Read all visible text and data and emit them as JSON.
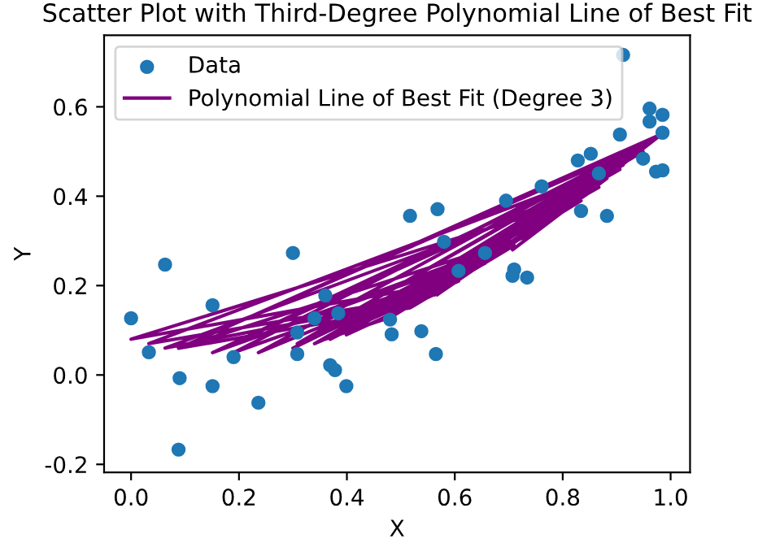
{
  "chart_data": {
    "type": "scatter",
    "title": "Scatter Plot with Third-Degree Polynomial Line of Best Fit",
    "xlabel": "X",
    "ylabel": "Y",
    "x": [
      0.48,
      0.961,
      0.088,
      0.734,
      0.151,
      0.906,
      0.34,
      0.607,
      0.0,
      0.828,
      0.308,
      0.985,
      0.236,
      0.695,
      0.369,
      0.867,
      0.063,
      0.538,
      0.973,
      0.19,
      0.656,
      0.384,
      0.912,
      0.033,
      0.565,
      0.852,
      0.3,
      0.761,
      0.378,
      0.985,
      0.09,
      0.517,
      0.71,
      0.151,
      0.949,
      0.36,
      0.483,
      0.834,
      0.308,
      0.961,
      0.399,
      0.58,
      0.882,
      0.707,
      0.985,
      0.568
    ],
    "series": [
      {
        "name": "Data",
        "color": "#1f77b4",
        "marker": "circle",
        "values": [
          0.124,
          0.596,
          -0.167,
          0.218,
          0.156,
          0.538,
          0.127,
          0.233,
          0.127,
          0.48,
          0.047,
          0.542,
          -0.062,
          0.39,
          0.022,
          0.451,
          0.247,
          0.098,
          0.455,
          0.04,
          0.273,
          0.138,
          0.716,
          0.051,
          0.047,
          0.495,
          0.273,
          0.422,
          0.011,
          0.582,
          -0.007,
          0.356,
          0.236,
          -0.025,
          0.484,
          0.178,
          0.091,
          0.367,
          0.095,
          0.567,
          -0.025,
          0.298,
          0.356,
          0.222,
          0.458,
          0.371
        ]
      },
      {
        "name": "Polynomial Line of Best Fit (Degree 3)",
        "type": "line",
        "color": "#800080",
        "line_style": "solid",
        "values": [
          0.13,
          0.52,
          0.06,
          0.31,
          0.05,
          0.46,
          0.07,
          0.21,
          0.08,
          0.39,
          0.07,
          0.54,
          0.05,
          0.28,
          0.08,
          0.42,
          0.06,
          0.17,
          0.53,
          0.05,
          0.25,
          0.09,
          0.47,
          0.07,
          0.18,
          0.41,
          0.06,
          0.33,
          0.09,
          0.54,
          0.06,
          0.15,
          0.29,
          0.05,
          0.5,
          0.08,
          0.13,
          0.39,
          0.07,
          0.52,
          0.09,
          0.19,
          0.44,
          0.28,
          0.54,
          0.18
        ]
      }
    ],
    "xlim": [
      -0.05,
      1.036
    ],
    "ylim": [
      -0.218,
      0.76
    ],
    "xticks": [
      {
        "value": 0,
        "label": "0.0"
      },
      0.2,
      0.4,
      0.6,
      0.8,
      {
        "value": 1,
        "label": "1.0"
      }
    ],
    "yticks": [
      -0.2,
      {
        "value": 0,
        "label": "0.0"
      },
      0.2,
      0.4,
      0.6
    ],
    "grid": false,
    "legend": "top left"
  }
}
